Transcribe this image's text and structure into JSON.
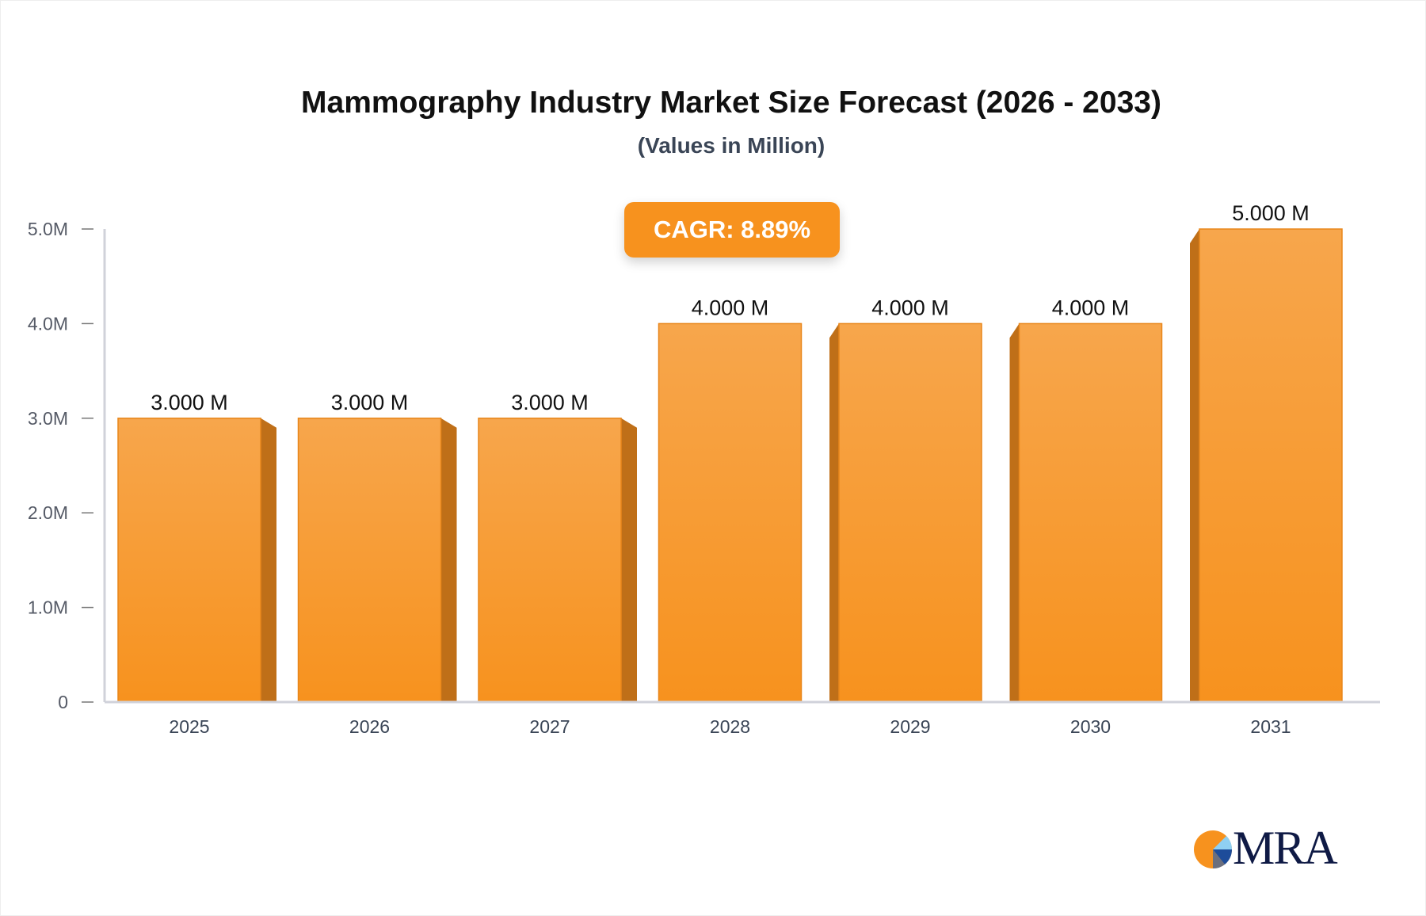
{
  "chart_data": {
    "type": "bar",
    "title": "Mammography Industry Market Size Forecast (2026 - 2033)",
    "subtitle": "(Values in Million)",
    "categories": [
      "2025",
      "2026",
      "2027",
      "2028",
      "2029",
      "2030",
      "2031"
    ],
    "values": [
      3.0,
      3.0,
      3.0,
      4.0,
      4.0,
      4.0,
      5.0
    ],
    "data_labels": [
      "3.000 M",
      "3.000 M",
      "3.000 M",
      "4.000 M",
      "4.000 M",
      "4.000 M",
      "5.000 M"
    ],
    "ylim": [
      0,
      5
    ],
    "y_ticks": [
      0,
      1,
      2,
      3,
      4,
      5
    ],
    "y_tick_labels": [
      "0",
      "1.0M",
      "2.0M",
      "3.0M",
      "4.0M",
      "5.0M"
    ],
    "xlabel": "",
    "ylabel": "",
    "grid": false,
    "annotation": "CAGR: 8.89%",
    "colors": {
      "bar_front": "#f7a347",
      "bar_bottom": "#f7921e",
      "bar_side": "#bf6f18",
      "axis": "#d0d2da",
      "badge": "#f7921e"
    }
  },
  "logo": {
    "text": "MRA"
  }
}
